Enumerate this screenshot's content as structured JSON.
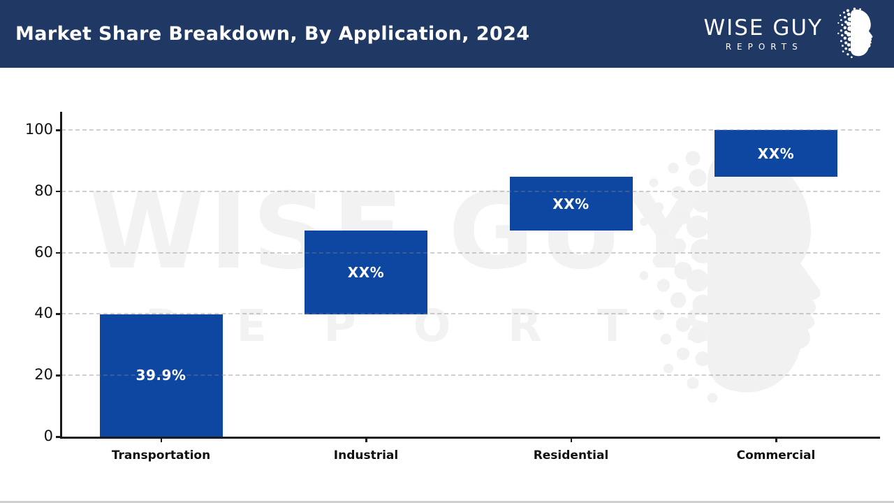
{
  "header": {
    "title": "Market Share Breakdown, By Application, 2024",
    "logo": {
      "brand": "WISE GUY",
      "sub": "REPORTS",
      "icon": "wiseguy-face-icon"
    }
  },
  "watermark": {
    "brand": "WISE GUY",
    "sub": "REPORTS"
  },
  "chart_data": {
    "type": "bar",
    "subtype": "waterfall-floating-bars",
    "title": "Market Share Breakdown, By Application, 2024",
    "categories": [
      "Transportation",
      "Industrial",
      "Residential",
      "Commercial"
    ],
    "segments": [
      {
        "category": "Transportation",
        "start": 0,
        "end": 39.9,
        "label": "39.9%"
      },
      {
        "category": "Industrial",
        "start": 39.9,
        "end": 67.2,
        "label": "XX%"
      },
      {
        "category": "Residential",
        "start": 67.2,
        "end": 84.7,
        "label": "XX%"
      },
      {
        "category": "Commercial",
        "start": 84.7,
        "end": 100,
        "label": "XX%"
      }
    ],
    "xlabel": "",
    "ylabel": "",
    "yticks": [
      0,
      20,
      40,
      60,
      80,
      100
    ],
    "ylim": [
      0,
      106
    ],
    "grid": "horizontal-dashed",
    "legend": "none",
    "bar_color": "#0d47a1",
    "value_label_color": "#ffffff"
  },
  "colors": {
    "header_bg": "#1f3864",
    "bar": "#0d47a1",
    "axis": "#1a1a1a",
    "watermark": "#f1f1f1",
    "page_bg": "#ffffff"
  }
}
